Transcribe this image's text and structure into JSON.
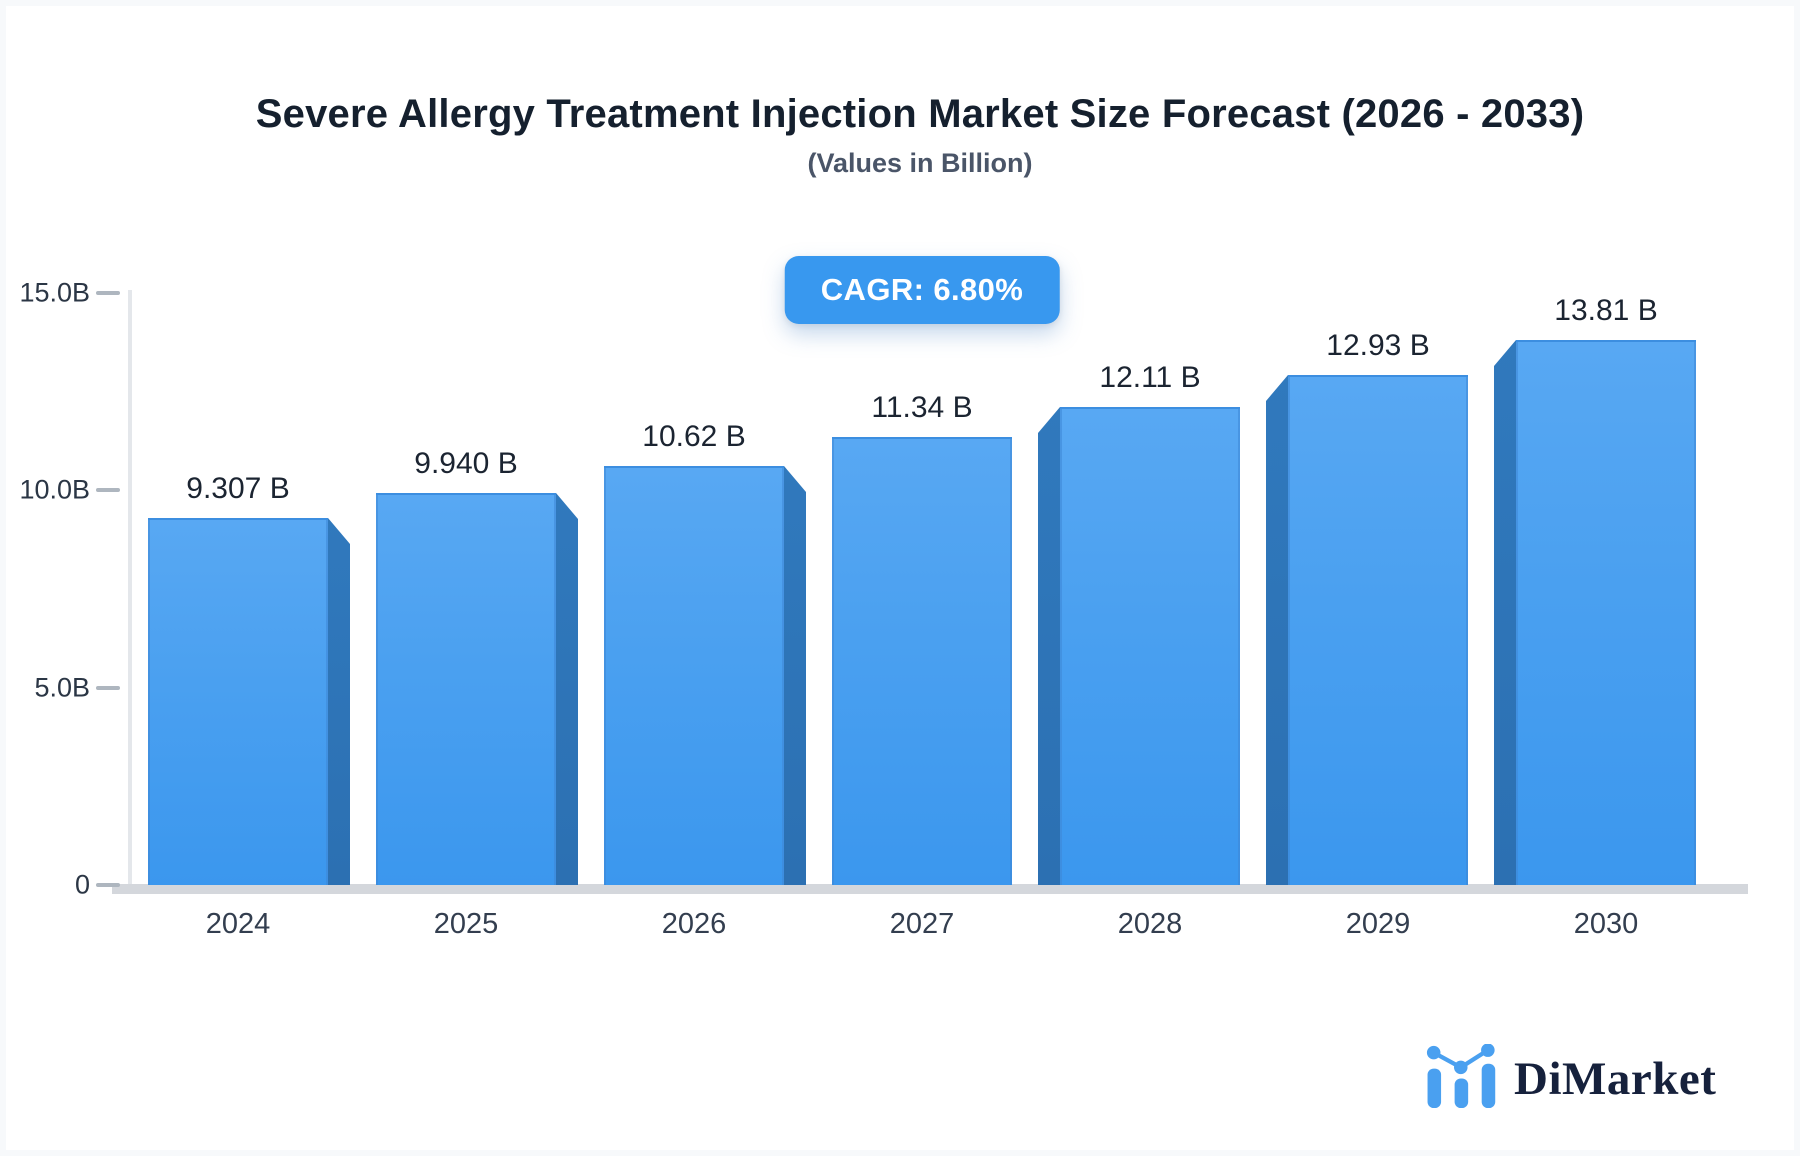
{
  "header": {
    "title": "Severe Allergy Treatment Injection Market Size Forecast (2026 - 2033)",
    "subtitle": "(Values in Billion)",
    "cagr_badge": "CAGR: 6.80%"
  },
  "colors": {
    "accent": "#3898ef",
    "bar_face_top": "#58a8f3",
    "bar_face_bottom": "#3b97ee",
    "bar_side": "#2e76ba",
    "baseline": "#d4d7dc",
    "title_text": "#15202e"
  },
  "chart_data": {
    "type": "bar",
    "title": "Severe Allergy Treatment Injection Market Size Forecast (2026 - 2033)",
    "subtitle": "(Values in Billion)",
    "categories": [
      "2024",
      "2025",
      "2026",
      "2027",
      "2028",
      "2029",
      "2030"
    ],
    "values": [
      9.307,
      9.94,
      10.62,
      11.34,
      12.11,
      12.93,
      13.81
    ],
    "value_labels": [
      "9.307 B",
      "9.940 B",
      "10.62 B",
      "11.34 B",
      "12.11 B",
      "12.93 B",
      "13.81 B"
    ],
    "xlabel": "",
    "ylabel": "",
    "ylim": [
      0,
      15
    ],
    "grid": false,
    "legend": false,
    "annotation": "CAGR: 6.80%",
    "yticks": [
      {
        "label": "15.0B",
        "value": 15.0
      },
      {
        "label": "10.0B",
        "value": 10.0
      },
      {
        "label": "5.0B",
        "value": 5.0
      },
      {
        "label": "0",
        "value": 0
      }
    ]
  },
  "branding": {
    "name": "DiMarket",
    "icon": "bar-line-chart-icon"
  }
}
